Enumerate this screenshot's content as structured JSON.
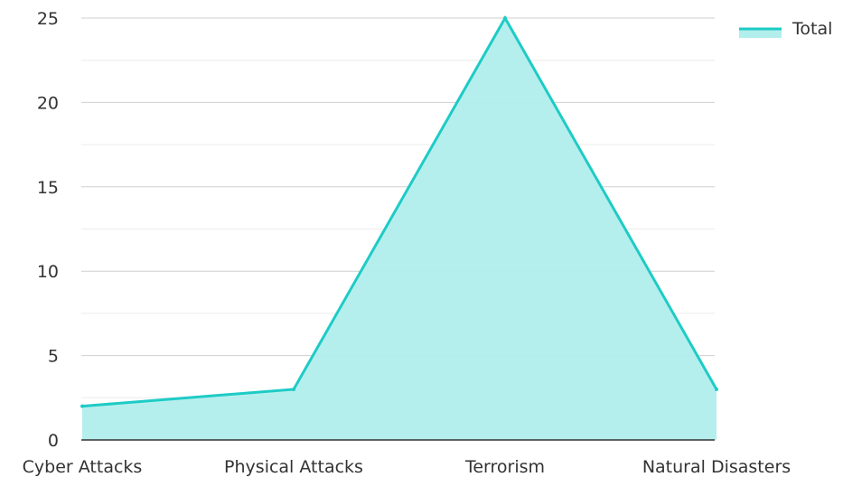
{
  "chart_data": {
    "type": "area",
    "categories": [
      "Cyber Attacks",
      "Physical Attacks",
      "Terrorism",
      "Natural Disasters"
    ],
    "series": [
      {
        "name": "Total",
        "values": [
          2,
          3,
          25,
          3
        ]
      }
    ],
    "ylim": [
      0,
      25
    ],
    "yticks": [
      0,
      5,
      10,
      15,
      20,
      25
    ],
    "grid": true,
    "legend": "top-right",
    "colors": {
      "line": "#1ecbc6",
      "fill": "#b1eeec",
      "grid": "#d9d9d9",
      "axis": "#333333"
    }
  }
}
